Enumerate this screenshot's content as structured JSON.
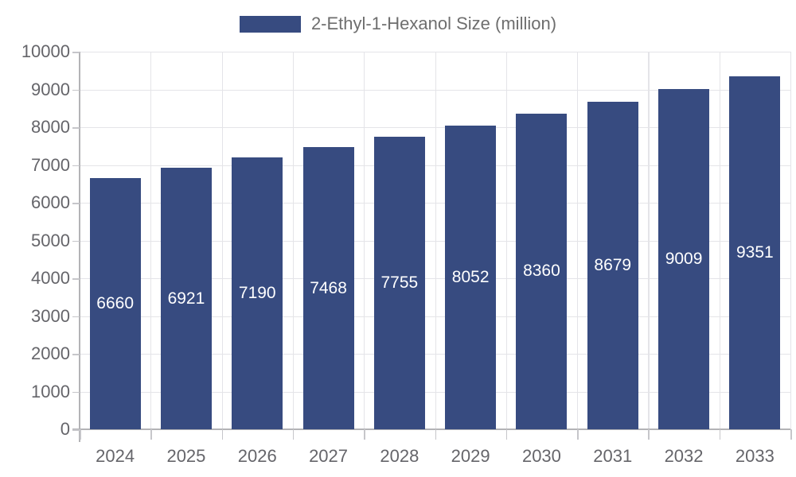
{
  "legend": {
    "label": "2-Ethyl-1-Hexanol Size (million)",
    "swatch_icon": "filled-square"
  },
  "chart_data": {
    "type": "bar",
    "title": "",
    "xlabel": "",
    "ylabel": "",
    "categories": [
      "2024",
      "2025",
      "2026",
      "2027",
      "2028",
      "2029",
      "2030",
      "2031",
      "2032",
      "2033"
    ],
    "values": [
      6660,
      6921,
      7190,
      7468,
      7755,
      8052,
      8360,
      8679,
      9009,
      9351
    ],
    "series_name": "2-Ethyl-1-Hexanol Size (million)",
    "ylim": [
      0,
      10000
    ],
    "yticks": [
      0,
      1000,
      2000,
      3000,
      4000,
      5000,
      6000,
      7000,
      8000,
      9000,
      10000
    ],
    "grid": true,
    "legend_position": "top-center",
    "bar_color": "#374b80",
    "bar_label_color": "#ffffff",
    "axis_text_color": "#65656a",
    "legend_text_color": "#6e6e6e",
    "grid_color": "#e4e4e8",
    "axis_line_color": "#b3b3b6",
    "tick_color": "#c6c6ca"
  }
}
